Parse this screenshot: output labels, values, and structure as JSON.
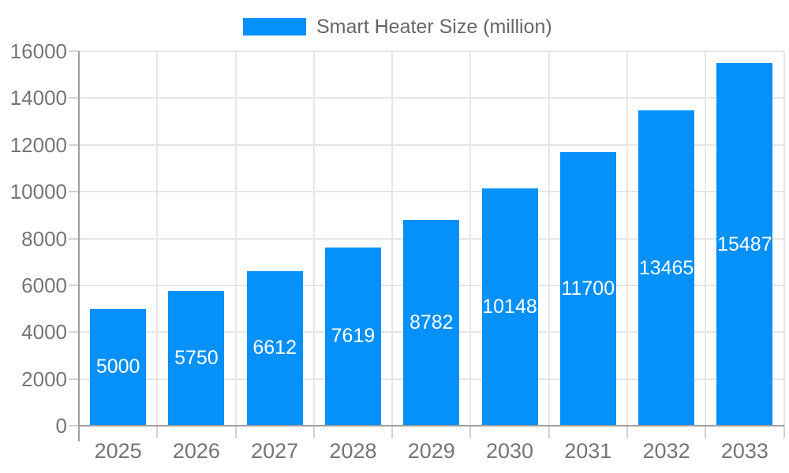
{
  "legend": {
    "label": "Smart Heater Size (million)"
  },
  "colors": {
    "bar": "#0590FA",
    "bar_label": "#FFFFFF",
    "axis_text": "#757575",
    "legend_text": "#666666",
    "grid": "#E6E6E6",
    "axis_line": "#9E9E9E",
    "tick": "#D2D2D2",
    "background": "#FFFFFF"
  },
  "chart_data": {
    "type": "bar",
    "title": "",
    "categories": [
      "2025",
      "2026",
      "2027",
      "2028",
      "2029",
      "2030",
      "2031",
      "2032",
      "2033"
    ],
    "series": [
      {
        "name": "Smart Heater Size (million)",
        "color": "#0590FA",
        "values": [
          5000,
          5750,
          6612,
          7619,
          8782,
          10148,
          11700,
          13465,
          15487
        ]
      }
    ],
    "xlabel": "",
    "ylabel": "",
    "ylim": [
      0,
      16000
    ],
    "yticks": [
      0,
      2000,
      4000,
      6000,
      8000,
      10000,
      12000,
      14000,
      16000
    ],
    "grid": true,
    "legend_position": "top-center",
    "value_label_position": "inside-center"
  }
}
